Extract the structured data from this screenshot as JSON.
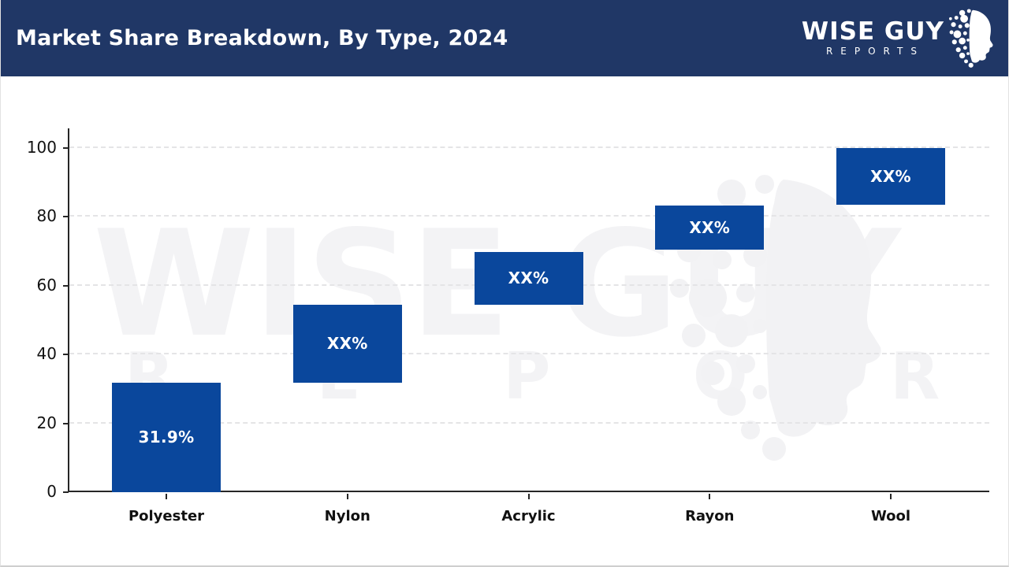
{
  "header": {
    "title": "Market Share Breakdown, By Type, 2024",
    "background_color": "#203766",
    "logo": {
      "line1": "WISE GUY",
      "line2": "REPORTS"
    }
  },
  "watermark": {
    "line1": "WISE GUY",
    "line2": "R E P O R T S"
  },
  "chart_data": {
    "type": "bar",
    "subtype": "waterfall",
    "title": "Market Share Breakdown, By Type, 2024",
    "categories": [
      "Polyester",
      "Nylon",
      "Acrylic",
      "Rayon",
      "Wool"
    ],
    "bars": [
      {
        "category": "Polyester",
        "start": 0,
        "end": 31.9,
        "label": "31.9%"
      },
      {
        "category": "Nylon",
        "start": 31.9,
        "end": 54.4,
        "label": "XX%"
      },
      {
        "category": "Acrylic",
        "start": 54.4,
        "end": 69.9,
        "label": "XX%"
      },
      {
        "category": "Rayon",
        "start": 70.4,
        "end": 83.3,
        "label": "XX%"
      },
      {
        "category": "Wool",
        "start": 83.5,
        "end": 100,
        "label": "XX%"
      }
    ],
    "xlabel": "",
    "ylabel": "",
    "ylim": [
      0,
      100
    ],
    "yticks": [
      0,
      20,
      40,
      60,
      80,
      100
    ],
    "grid": "horizontal-dashed",
    "legend": "none",
    "bar_color": "#0a479c",
    "bar_label_color": "#ffffff"
  }
}
